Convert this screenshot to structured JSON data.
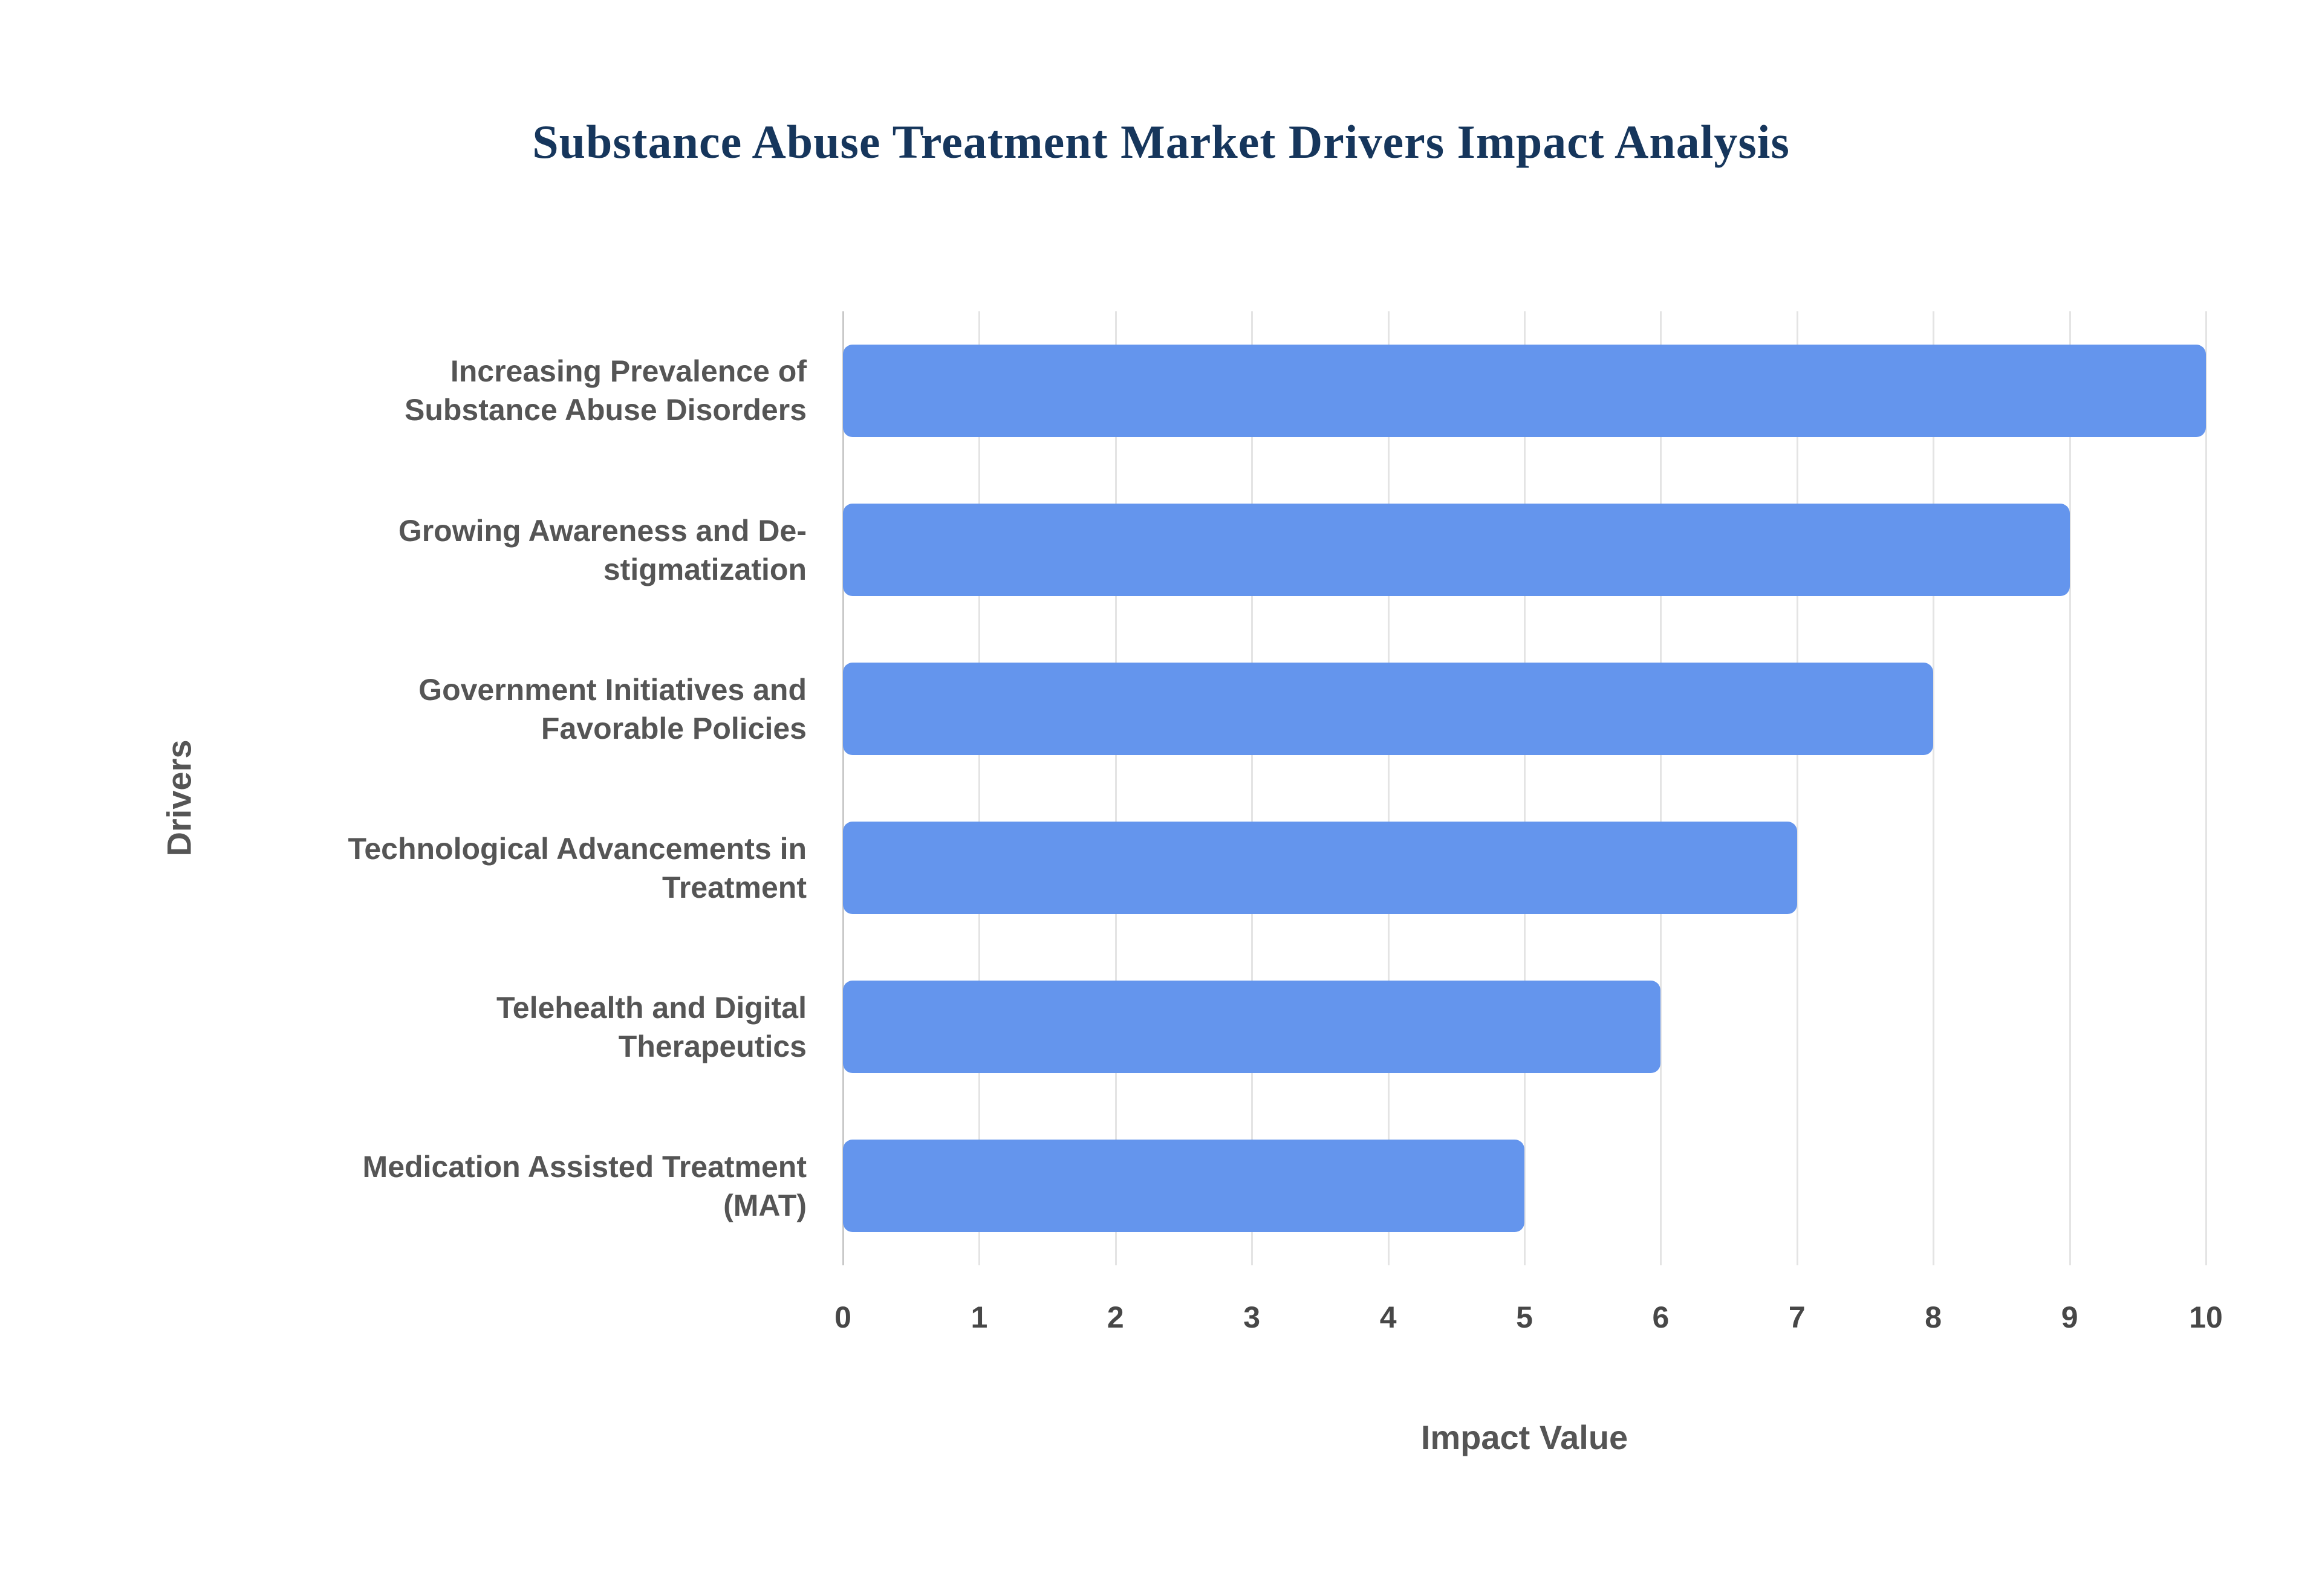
{
  "page": {
    "background": "#ffffff"
  },
  "chart_data": {
    "type": "bar",
    "orientation": "horizontal",
    "title": "Substance Abuse Treatment Market Drivers Impact Analysis",
    "categories": [
      "Increasing Prevalence of Substance Abuse Disorders",
      "Growing Awareness and De-stigmatization",
      "Government Initiatives and Favorable Policies",
      "Technological Advancements in Treatment",
      "Telehealth and Digital Therapeutics",
      "Medication Assisted Treatment (MAT)"
    ],
    "values": [
      10,
      9,
      8,
      7,
      6,
      5
    ],
    "xlabel": "Impact Value",
    "ylabel": "Drivers",
    "xlim": [
      0,
      10
    ],
    "xticks": [
      0,
      1,
      2,
      3,
      4,
      5,
      6,
      7,
      8,
      9,
      10
    ],
    "grid": "vertical",
    "legend": "none",
    "bar_color": "#6495ED",
    "title_color": "#16365C",
    "label_color": "#555555",
    "gridline_color": "#E4E4E4"
  }
}
